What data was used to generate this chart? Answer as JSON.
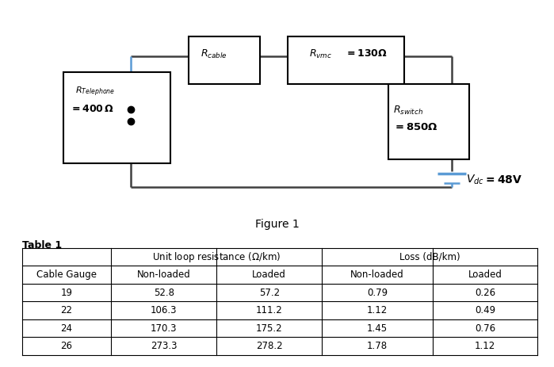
{
  "figure_label": "Figure 1",
  "table_label": "Table 1",
  "table_header1_left": "Unit loop resistance (Ω/km)",
  "table_header1_right": "Loss (dB/km)",
  "table_header2": [
    "Cable Gauge",
    "Non-loaded",
    "Loaded",
    "Non-loaded",
    "Loaded"
  ],
  "table_data": [
    [
      "19",
      "52.8",
      "57.2",
      "0.79",
      "0.26"
    ],
    [
      "22",
      "106.3",
      "111.2",
      "1.12",
      "0.49"
    ],
    [
      "24",
      "170.3",
      "175.2",
      "1.45",
      "0.76"
    ],
    [
      "26",
      "273.3",
      "278.2",
      "1.78",
      "1.12"
    ]
  ],
  "wire_color": "#404040",
  "blue_color": "#5B9BD5",
  "box_color": "#000000",
  "bg_color": "#ffffff"
}
